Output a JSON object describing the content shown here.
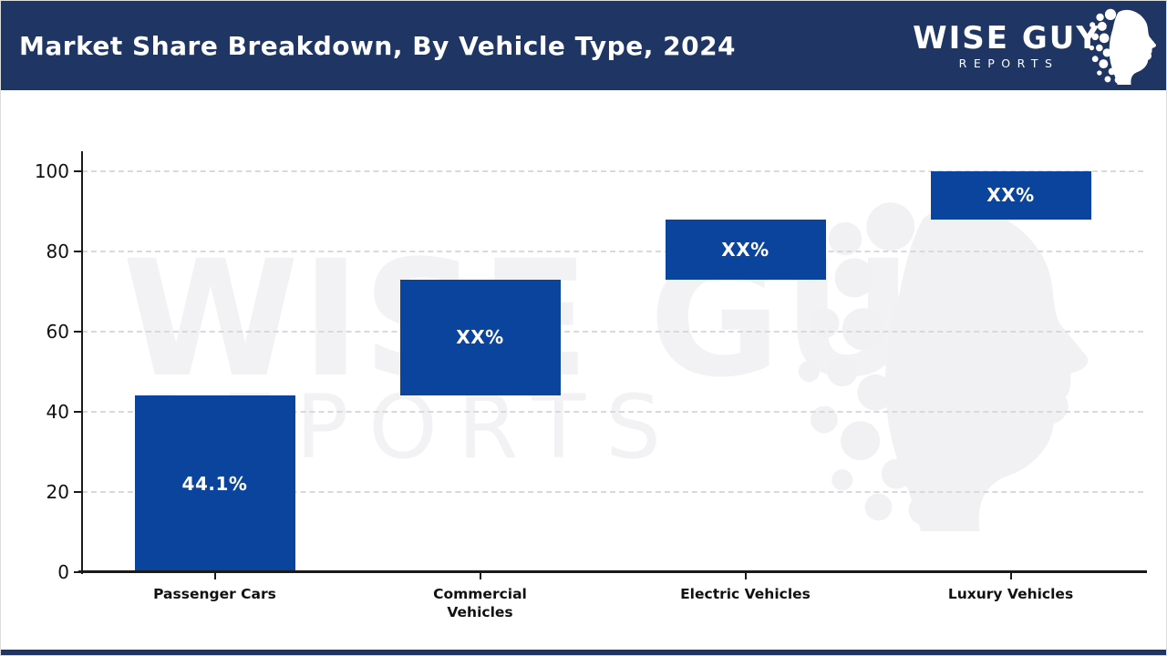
{
  "header": {
    "title": "Market Share Breakdown, By Vehicle Type, 2024",
    "brand_line1": "WISE GUY",
    "brand_line2": "REPORTS",
    "bg_color": "#1f3564"
  },
  "watermark": {
    "line1": "WISE GUY",
    "line2": "REPORTS"
  },
  "chart_data": {
    "type": "bar",
    "subtype": "waterfall",
    "title": "Market Share Breakdown, By Vehicle Type, 2024",
    "xlabel": "",
    "ylabel": "",
    "ylim": [
      0,
      105
    ],
    "yticks": [
      0,
      20,
      40,
      60,
      80,
      100
    ],
    "grid": "horizontal-dashed",
    "legend": "none",
    "bar_color": "#0b449c",
    "label_color": "#ffffff",
    "categories": [
      "Passenger Cars",
      "Commercial Vehicles",
      "Electric Vehicles",
      "Luxury Vehicles"
    ],
    "bars": [
      {
        "category": "Passenger Cars",
        "tick_lines": [
          "Passenger Cars"
        ],
        "start": 0,
        "end": 44.1,
        "label": "44.1%"
      },
      {
        "category": "Commercial Vehicles",
        "tick_lines": [
          "Commercial",
          "Vehicles"
        ],
        "start": 44.1,
        "end": 73,
        "label": "XX%"
      },
      {
        "category": "Electric Vehicles",
        "tick_lines": [
          "Electric Vehicles"
        ],
        "start": 73,
        "end": 88,
        "label": "XX%"
      },
      {
        "category": "Luxury Vehicles",
        "tick_lines": [
          "Luxury Vehicles"
        ],
        "start": 88,
        "end": 100,
        "label": "XX%"
      }
    ]
  }
}
